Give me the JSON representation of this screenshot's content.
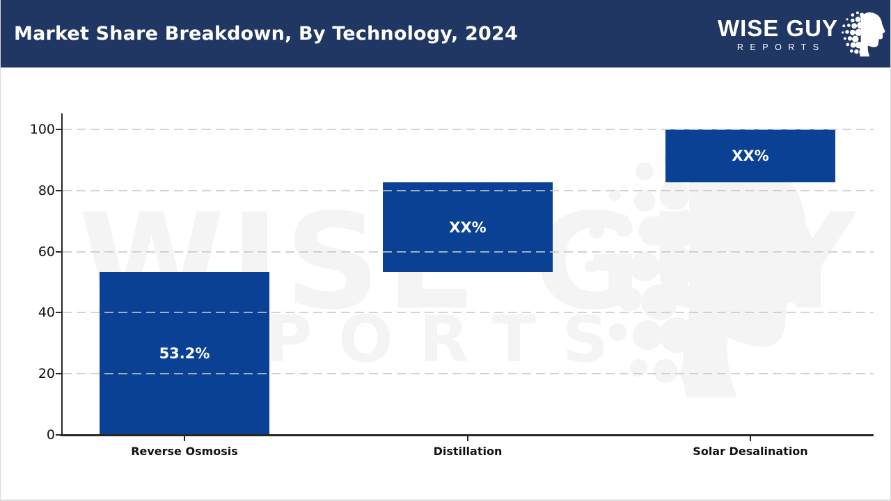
{
  "header": {
    "title": "Market Share Breakdown, By Technology, 2024",
    "logo": {
      "line1": "WISE GUY",
      "line2": "REPORTS"
    }
  },
  "watermark": {
    "line1": "WISE GUY",
    "line2": "REPORTS"
  },
  "chart_data": {
    "type": "bar",
    "variant": "floating-breakdown",
    "title": "Market Share Breakdown, By Technology, 2024",
    "categories": [
      "Reverse Osmosis",
      "Distillation",
      "Solar Desalination"
    ],
    "bars": [
      {
        "category": "Reverse Osmosis",
        "start": 0,
        "end": 53.2,
        "label": "53.2%"
      },
      {
        "category": "Distillation",
        "start": 53.2,
        "end": 82.6,
        "label": "XX%"
      },
      {
        "category": "Solar Desalination",
        "start": 82.6,
        "end": 100,
        "label": "XX%"
      }
    ],
    "xlabel": "",
    "ylabel": "",
    "yticks": [
      0,
      20,
      40,
      60,
      80,
      100
    ],
    "ylim": [
      0,
      105
    ],
    "grid": "horizontal-dashed",
    "legend": "none",
    "colors": {
      "bar": "#0b4194",
      "header_bg": "#203663",
      "grid": "#d4d4d4",
      "axis": "#262626",
      "bar_label": "#ffffff",
      "tick_label": "#111111",
      "watermark": "#f4f4f4",
      "title_text": "#ffffff"
    }
  }
}
